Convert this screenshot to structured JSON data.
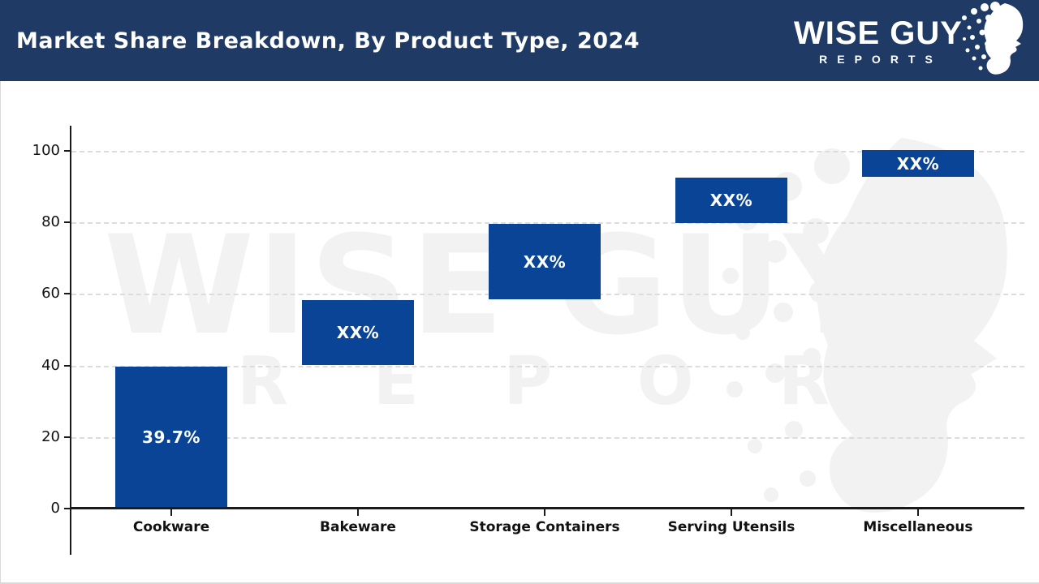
{
  "header": {
    "title": "Market Share Breakdown, By Product Type, 2024",
    "background_color": "#203a66",
    "logo": {
      "line1": "WISE GUY",
      "line2": "REPORTS"
    }
  },
  "watermark": {
    "line1": "WISE GUY",
    "line2": "R E P O R T S"
  },
  "chart_data": {
    "type": "bar",
    "variant": "waterfall",
    "title": "Market Share Breakdown, By Product Type, 2024",
    "categories": [
      "Cookware",
      "Bakeware",
      "Storage Containers",
      "Serving Utensils",
      "Miscellaneous"
    ],
    "segments": [
      {
        "category": "Cookware",
        "label": "39.7%",
        "start": 0,
        "end": 39.7
      },
      {
        "category": "Bakeware",
        "label": "XX%",
        "start": 40.1,
        "end": 58.3
      },
      {
        "category": "Storage Containers",
        "label": "XX%",
        "start": 58.4,
        "end": 79.5
      },
      {
        "category": "Serving Utensils",
        "label": "XX%",
        "start": 79.8,
        "end": 92.6
      },
      {
        "category": "Miscellaneous",
        "label": "XX%",
        "start": 92.7,
        "end": 100.2
      }
    ],
    "yticks": [
      0,
      20,
      40,
      60,
      80,
      100
    ],
    "ylim": [
      0,
      107
    ],
    "xlabel": "",
    "ylabel": "",
    "grid": {
      "visible": true,
      "style": "dashed",
      "color": "#dcdcdc",
      "orientation": "horizontal"
    },
    "legend": "none",
    "bar_color": "#0a4496",
    "bar_label_color": "#ffffff",
    "axis_color": "#1a1a1a",
    "tick_label_color": "#111111"
  }
}
